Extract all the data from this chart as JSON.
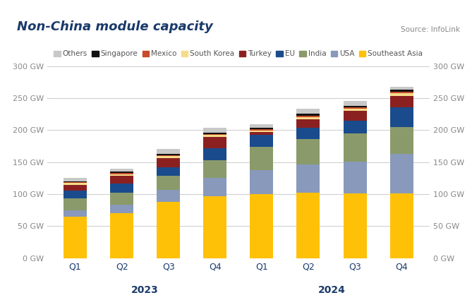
{
  "title": "Non-China module capacity",
  "source": "Source: InfoLink",
  "categories": [
    "Q1",
    "Q2",
    "Q3",
    "Q4",
    "Q1",
    "Q2",
    "Q3",
    "Q4"
  ],
  "ylim": [
    0,
    300
  ],
  "yticks": [
    0,
    50,
    100,
    150,
    200,
    250,
    300
  ],
  "series": [
    {
      "name": "Southeast Asia",
      "color": "#FFC107",
      "values": [
        65,
        70,
        88,
        97,
        100,
        102,
        101,
        101
      ]
    },
    {
      "name": "USA",
      "color": "#8899BB",
      "values": [
        10,
        13,
        18,
        28,
        37,
        44,
        50,
        62
      ]
    },
    {
      "name": "India",
      "color": "#8A9A6A",
      "values": [
        18,
        19,
        22,
        28,
        37,
        40,
        44,
        42
      ]
    },
    {
      "name": "EU",
      "color": "#1A4B8C",
      "values": [
        12,
        14,
        14,
        18,
        18,
        18,
        20,
        30
      ]
    },
    {
      "name": "Turkey",
      "color": "#8B2020",
      "values": [
        9,
        12,
        14,
        18,
        5,
        13,
        15,
        18
      ]
    },
    {
      "name": "South Korea",
      "color": "#F5DC8A",
      "values": [
        3,
        3,
        3,
        3,
        2,
        3,
        3,
        4
      ]
    },
    {
      "name": "Mexico",
      "color": "#C84B2A",
      "values": [
        2,
        2,
        2,
        2,
        2,
        2,
        2,
        3
      ]
    },
    {
      "name": "Singapore",
      "color": "#111111",
      "values": [
        1,
        2,
        2,
        2,
        2,
        3,
        3,
        3
      ]
    },
    {
      "name": "Others",
      "color": "#C8C8C8",
      "values": [
        5,
        5,
        7,
        7,
        6,
        8,
        7,
        5
      ]
    }
  ],
  "legend_order": [
    "Others",
    "Singapore",
    "Mexico",
    "South Korea",
    "Turkey",
    "EU",
    "India",
    "USA",
    "Southeast Asia"
  ],
  "title_fontsize": 13,
  "title_color": "#1A3A6A",
  "source_color": "#888888",
  "source_fontsize": 7.5,
  "axis_label_color": "#888888",
  "legend_fontsize": 7.5,
  "bar_width": 0.5,
  "background_color": "#FFFFFF",
  "grid_color": "#CCCCCC",
  "x_label_color": "#1A3A6A",
  "year_label_color": "#1A3A6A",
  "year_label_fontsize": 10
}
